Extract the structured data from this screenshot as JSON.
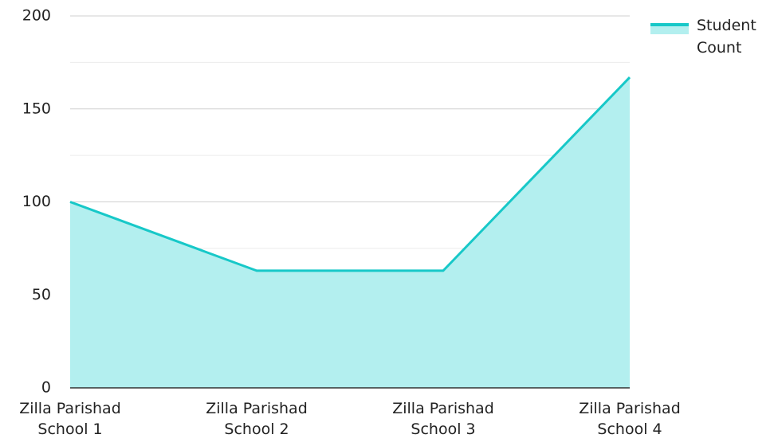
{
  "chart_data": {
    "type": "area",
    "categories": [
      "Zilla Parishad School 1",
      "Zilla Parishad School 2",
      "Zilla Parishad School 3",
      "Zilla Parishad School 4"
    ],
    "series": [
      {
        "name": "Student Count",
        "color": "#17c8c8",
        "fill": "#b3efef",
        "values": [
          100,
          63,
          63,
          167
        ]
      }
    ],
    "ylim": [
      0,
      200
    ],
    "yticks": [
      0,
      50,
      100,
      150,
      200
    ],
    "minor_yticks": [
      25,
      75,
      125,
      175
    ],
    "grid": true,
    "legend": "top-right"
  }
}
